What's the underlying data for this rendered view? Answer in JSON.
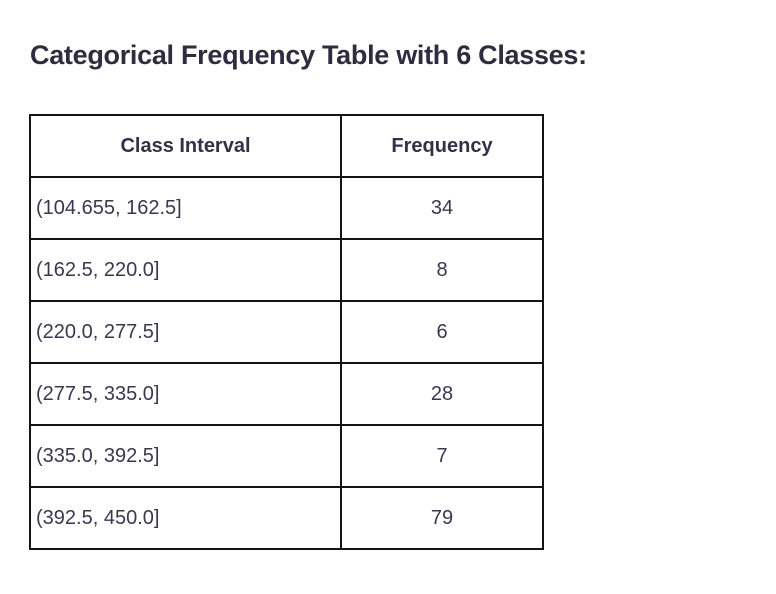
{
  "page": {
    "title": "Categorical Frequency Table with 6 Classes:"
  },
  "table": {
    "columns": [
      "Class Interval",
      "Frequency"
    ],
    "rows": [
      {
        "interval": "(104.655, 162.5]",
        "frequency": "34"
      },
      {
        "interval": "(162.5, 220.0]",
        "frequency": "8"
      },
      {
        "interval": "(220.0, 277.5]",
        "frequency": "6"
      },
      {
        "interval": "(277.5, 335.0]",
        "frequency": "28"
      },
      {
        "interval": "(335.0, 392.5]",
        "frequency": "7"
      },
      {
        "interval": "(392.5, 450.0]",
        "frequency": "79"
      }
    ]
  },
  "chart_data": {
    "type": "table",
    "title": "Categorical Frequency Table with 6 Classes:",
    "columns": [
      "Class Interval",
      "Frequency"
    ],
    "categories": [
      "(104.655, 162.5]",
      "(162.5, 220.0]",
      "(220.0, 277.5]",
      "(277.5, 335.0]",
      "(335.0, 392.5]",
      "(392.5, 450.0]"
    ],
    "values": [
      34,
      8,
      6,
      28,
      7,
      79
    ],
    "n_classes": 6
  },
  "colors": {
    "background": "#ffffff",
    "title_text": "#2e2c3e",
    "cell_text": "#3a3850",
    "border": "#141414"
  }
}
